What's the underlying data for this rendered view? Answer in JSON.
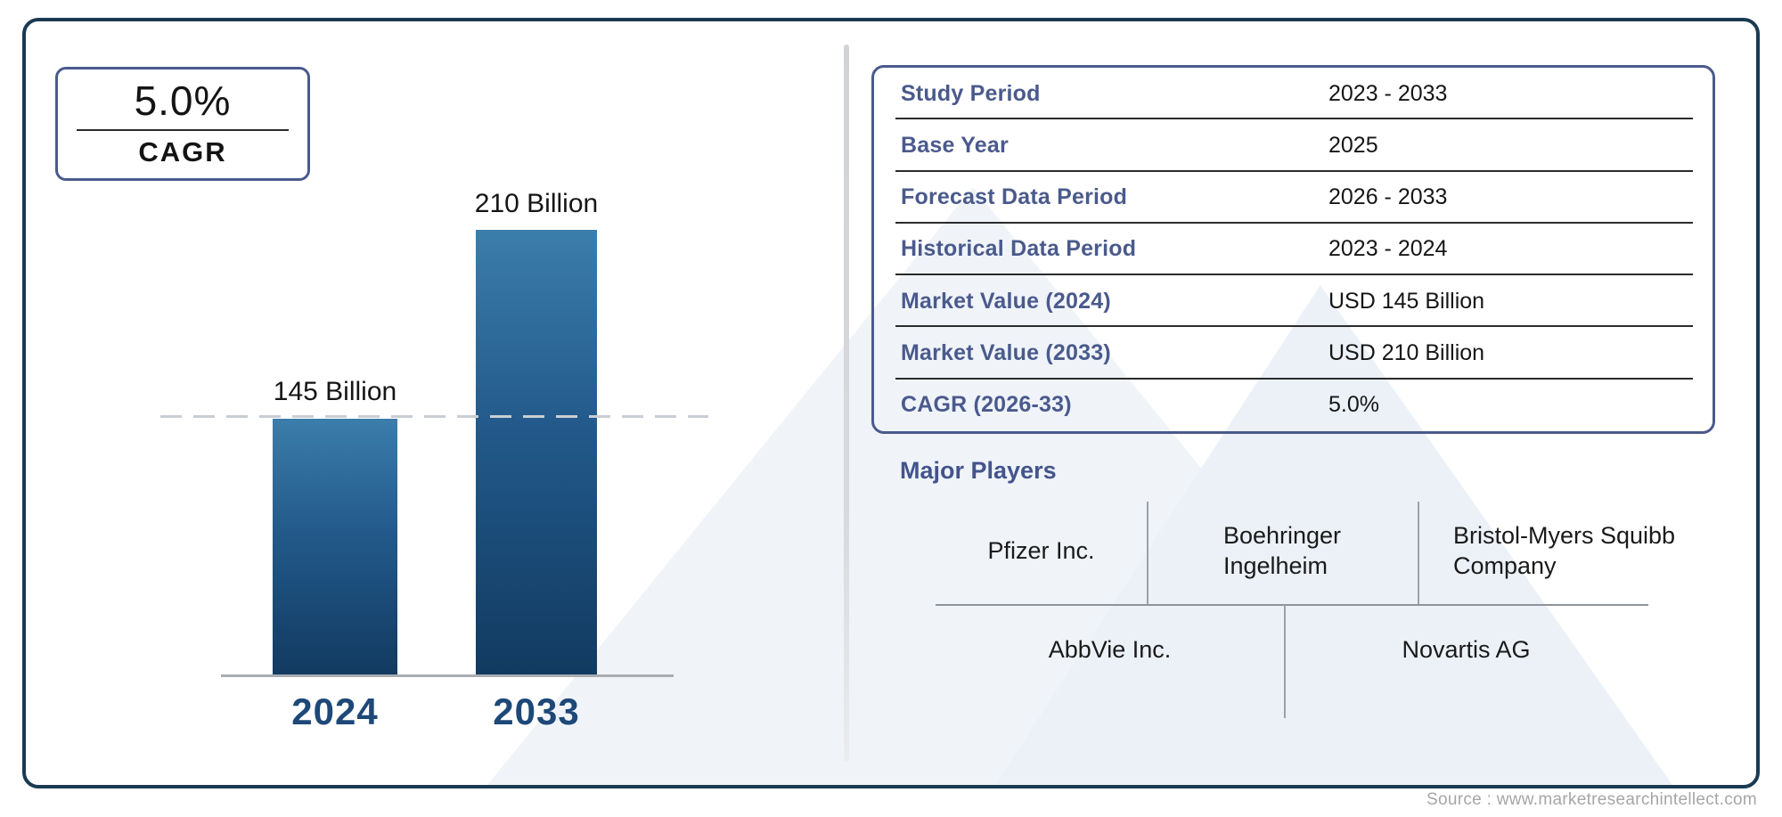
{
  "cagr_box": {
    "value": "5.0%",
    "label": "CAGR"
  },
  "chart_data": {
    "type": "bar",
    "categories": [
      "2024",
      "2033"
    ],
    "values": [
      145,
      210
    ],
    "unit": "USD Billion",
    "bar_labels": [
      "145 Billion",
      "210 Billion"
    ],
    "title": "",
    "xlabel": "",
    "ylabel": "",
    "ylim": [
      0,
      220
    ],
    "grid": false,
    "legend": false,
    "reference_line": {
      "at_value": 145,
      "style": "dashed"
    },
    "colors": {
      "bar_gradient_top": "#3b7dab",
      "bar_gradient_bottom": "#113a60",
      "category_label": "#1d4878",
      "value_label": "#151515",
      "dashed_line": "#c9ced4",
      "axis_line": "#a9adb2"
    }
  },
  "info_table": {
    "rows": [
      {
        "label": "Study Period",
        "value": "2023 - 2033"
      },
      {
        "label": "Base Year",
        "value": "2025"
      },
      {
        "label": "Forecast Data Period",
        "value": "2026 - 2033"
      },
      {
        "label": "Historical Data Period",
        "value": "2023 - 2024"
      },
      {
        "label": "Market Value (2024)",
        "value": "USD 145 Billion"
      },
      {
        "label": "Market Value (2033)",
        "value": "USD 210 Billion"
      },
      {
        "label": "CAGR (2026-33)",
        "value": "5.0%"
      }
    ],
    "label_color": "#4a5a8c",
    "border_color": "#4a5a8c"
  },
  "major_players": {
    "heading": "Major Players",
    "row1": [
      "Pfizer Inc.",
      "Boehringer\nIngelheim",
      "Bristol-Myers Squibb\nCompany"
    ],
    "row2": [
      "AbbVie Inc.",
      "Novartis AG"
    ]
  },
  "footer": {
    "source": "Source : www.marketresearchintellect.com"
  },
  "theme": {
    "frame_border": "#1a3a52",
    "box_border": "#4a5a8c",
    "accent_text": "#44548c",
    "watermark": "#eef2f8"
  }
}
